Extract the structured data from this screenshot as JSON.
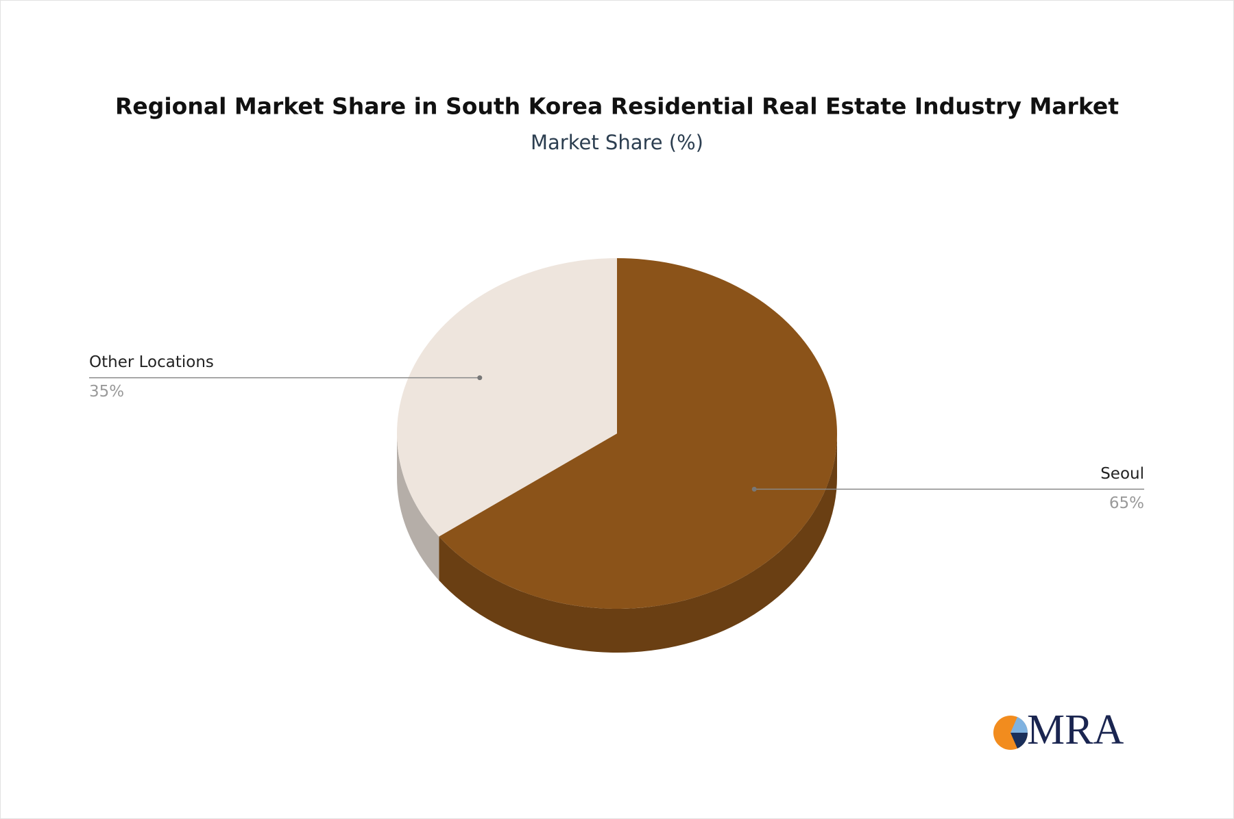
{
  "chart_data": {
    "type": "pie",
    "title": "Regional Market Share in South Korea Residential Real Estate Industry Market",
    "subtitle": "Market Share (%)",
    "categories": [
      "Seoul",
      "Other Locations"
    ],
    "values": [
      65,
      35
    ],
    "value_labels": [
      "65%",
      "35%"
    ],
    "colors": [
      "#8b5319",
      "#eee5dd"
    ]
  },
  "logo": {
    "text": "MRA"
  }
}
